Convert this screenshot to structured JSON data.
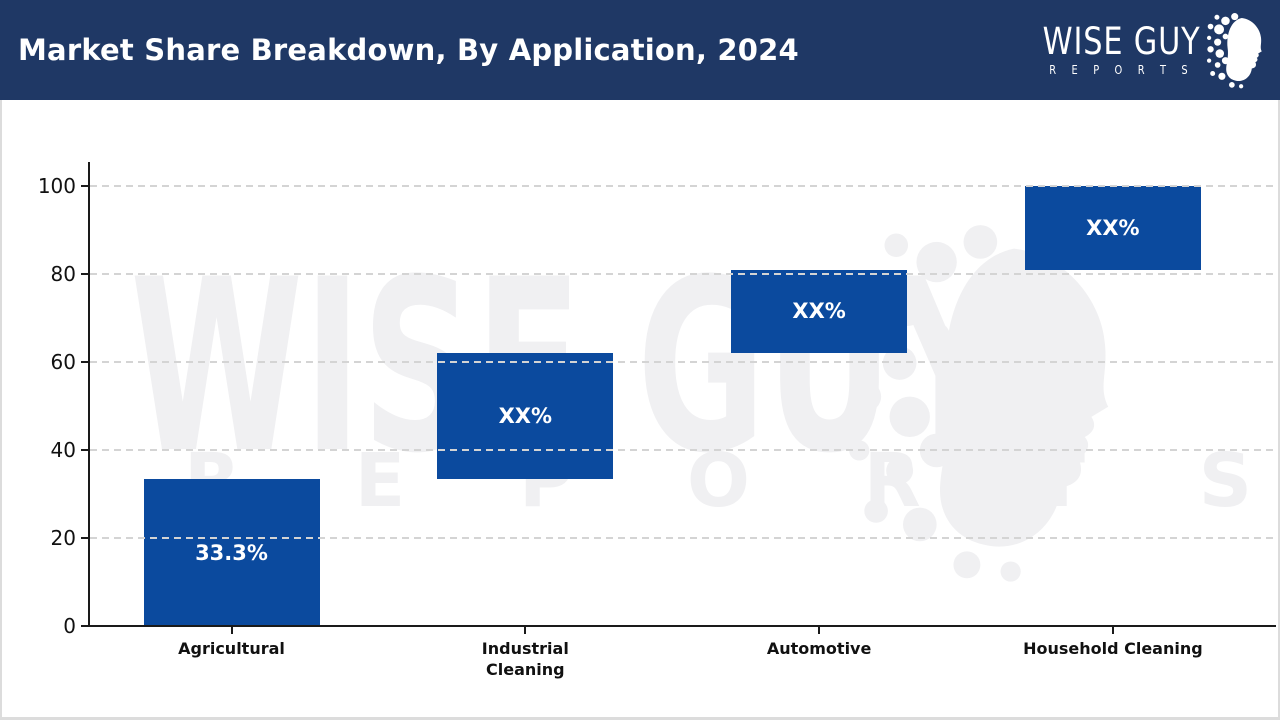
{
  "header": {
    "title": "Market Share Breakdown, By Application, 2024",
    "bg_color": "#1f3865",
    "logo": {
      "line1": "WISE GUY",
      "line2": "R E P O R T S"
    }
  },
  "watermark": {
    "line1": "WISE GUY",
    "line2": "R E P O R T S"
  },
  "chart_data": {
    "type": "bar",
    "subtype": "waterfall",
    "title": "Market Share Breakdown, By Application, 2024",
    "xlabel": "",
    "ylabel": "",
    "categories": [
      "Agricultural",
      "Industrial Cleaning",
      "Automotive",
      "Household Cleaning"
    ],
    "category_label_lines": [
      [
        "Agricultural"
      ],
      [
        "Industrial",
        "Cleaning"
      ],
      [
        "Automotive"
      ],
      [
        "Household Cleaning"
      ]
    ],
    "segments": [
      {
        "category": "Agricultural",
        "start": 0,
        "end": 33.3,
        "label": "33.3%"
      },
      {
        "category": "Industrial Cleaning",
        "start": 33.3,
        "end": 62.0,
        "label": "XX%"
      },
      {
        "category": "Automotive",
        "start": 62.0,
        "end": 81.0,
        "label": "XX%"
      },
      {
        "category": "Household Cleaning",
        "start": 81.0,
        "end": 100.0,
        "label": "XX%"
      }
    ],
    "yticks": [
      0,
      20,
      40,
      60,
      80,
      100
    ],
    "ylim": [
      0,
      105
    ],
    "grid": "horizontal-dashed",
    "legend": "none",
    "bar_color": "#0b4a9e",
    "bar_label_color": "#ffffff",
    "grid_color": "#d4d4d4",
    "axis_color": "#1a1a1a"
  }
}
